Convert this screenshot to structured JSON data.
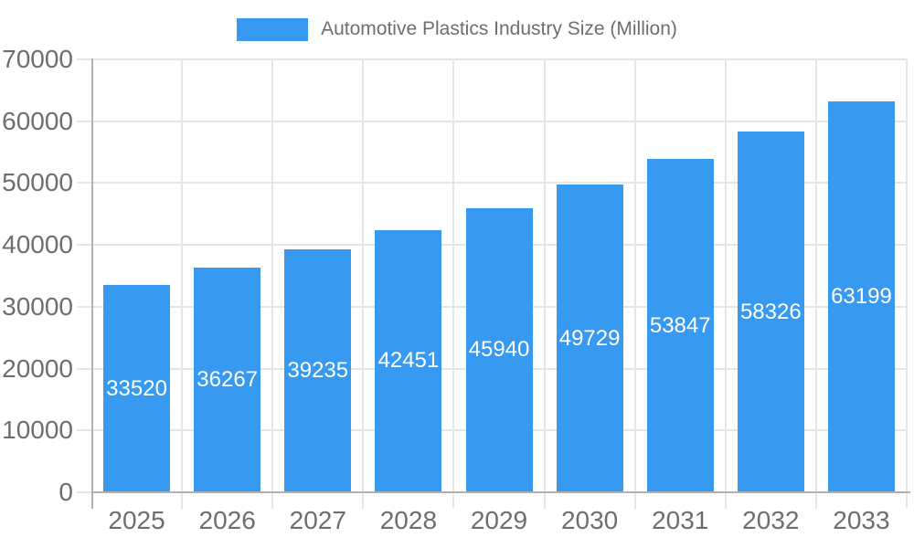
{
  "chart_data": {
    "type": "bar",
    "title": "Automotive Plastics Industry Size (Million)",
    "categories": [
      "2025",
      "2026",
      "2027",
      "2028",
      "2029",
      "2030",
      "2031",
      "2032",
      "2033"
    ],
    "series": [
      {
        "name": "Automotive Plastics Industry Size (Million)",
        "values": [
          33520,
          36267,
          39235,
          42451,
          45940,
          49729,
          53847,
          58326,
          63199
        ]
      }
    ],
    "xlabel": "",
    "ylabel": "",
    "ylim": [
      0,
      70000
    ],
    "yticks": [
      0,
      10000,
      20000,
      30000,
      40000,
      50000,
      60000,
      70000
    ],
    "grid": true,
    "legend_position": "top-center",
    "value_label_position": "inside-center"
  },
  "colors": {
    "bar": "#3899F0",
    "value_label": "#FFFFFF",
    "gridline": "#E6E6E6",
    "axis_line": "#B0B0B0",
    "tick_label": "#6E6E6E",
    "legend_text": "#6E6E6E",
    "background": "#FFFFFF"
  }
}
